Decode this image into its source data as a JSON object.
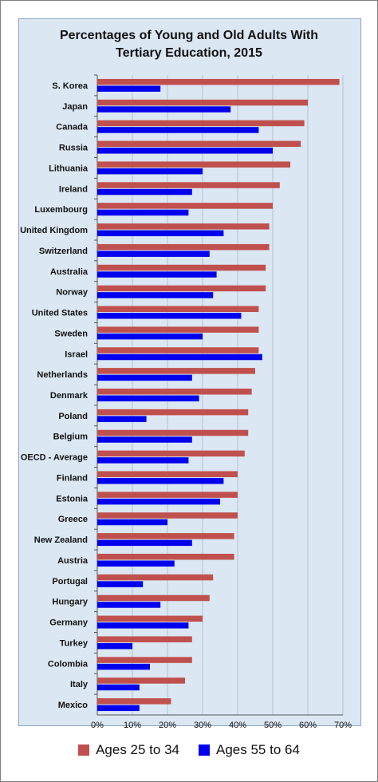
{
  "chart_data": {
    "type": "bar",
    "orientation": "horizontal",
    "title_line1": "Percentages of Young and Old Adults With",
    "title_line2": "Tertiary Education, 2015",
    "xlabel": "",
    "ylabel": "",
    "xlim": [
      0,
      70
    ],
    "x_ticks": [
      "0%",
      "10%",
      "20%",
      "30%",
      "40%",
      "50%",
      "60%",
      "70%"
    ],
    "grid": true,
    "legend_position": "bottom",
    "categories": [
      "S. Korea",
      "Japan",
      "Canada",
      "Russia",
      "Lithuania",
      "Ireland",
      "Luxembourg",
      "United Kingdom",
      "Switzerland",
      "Australia",
      "Norway",
      "United States",
      "Sweden",
      "Israel",
      "Netherlands",
      "Denmark",
      "Poland",
      "Belgium",
      "OECD - Average",
      "Finland",
      "Estonia",
      "Greece",
      "New Zealand",
      "Austria",
      "Portugal",
      "Hungary",
      "Germany",
      "Turkey",
      "Colombia",
      "Italy",
      "Mexico"
    ],
    "series": [
      {
        "name": "Ages 25 to 34",
        "color": "#c0504d",
        "values": [
          69,
          60,
          59,
          58,
          55,
          52,
          50,
          49,
          49,
          48,
          48,
          46,
          46,
          46,
          45,
          44,
          43,
          43,
          42,
          40,
          40,
          40,
          39,
          39,
          33,
          32,
          30,
          27,
          27,
          25,
          21
        ]
      },
      {
        "name": "Ages 55 to 64",
        "color": "#0000ee",
        "values": [
          18,
          38,
          46,
          50,
          30,
          27,
          26,
          36,
          32,
          34,
          33,
          41,
          30,
          47,
          27,
          29,
          14,
          27,
          26,
          36,
          35,
          20,
          27,
          22,
          13,
          18,
          26,
          10,
          15,
          12,
          12
        ]
      }
    ]
  }
}
